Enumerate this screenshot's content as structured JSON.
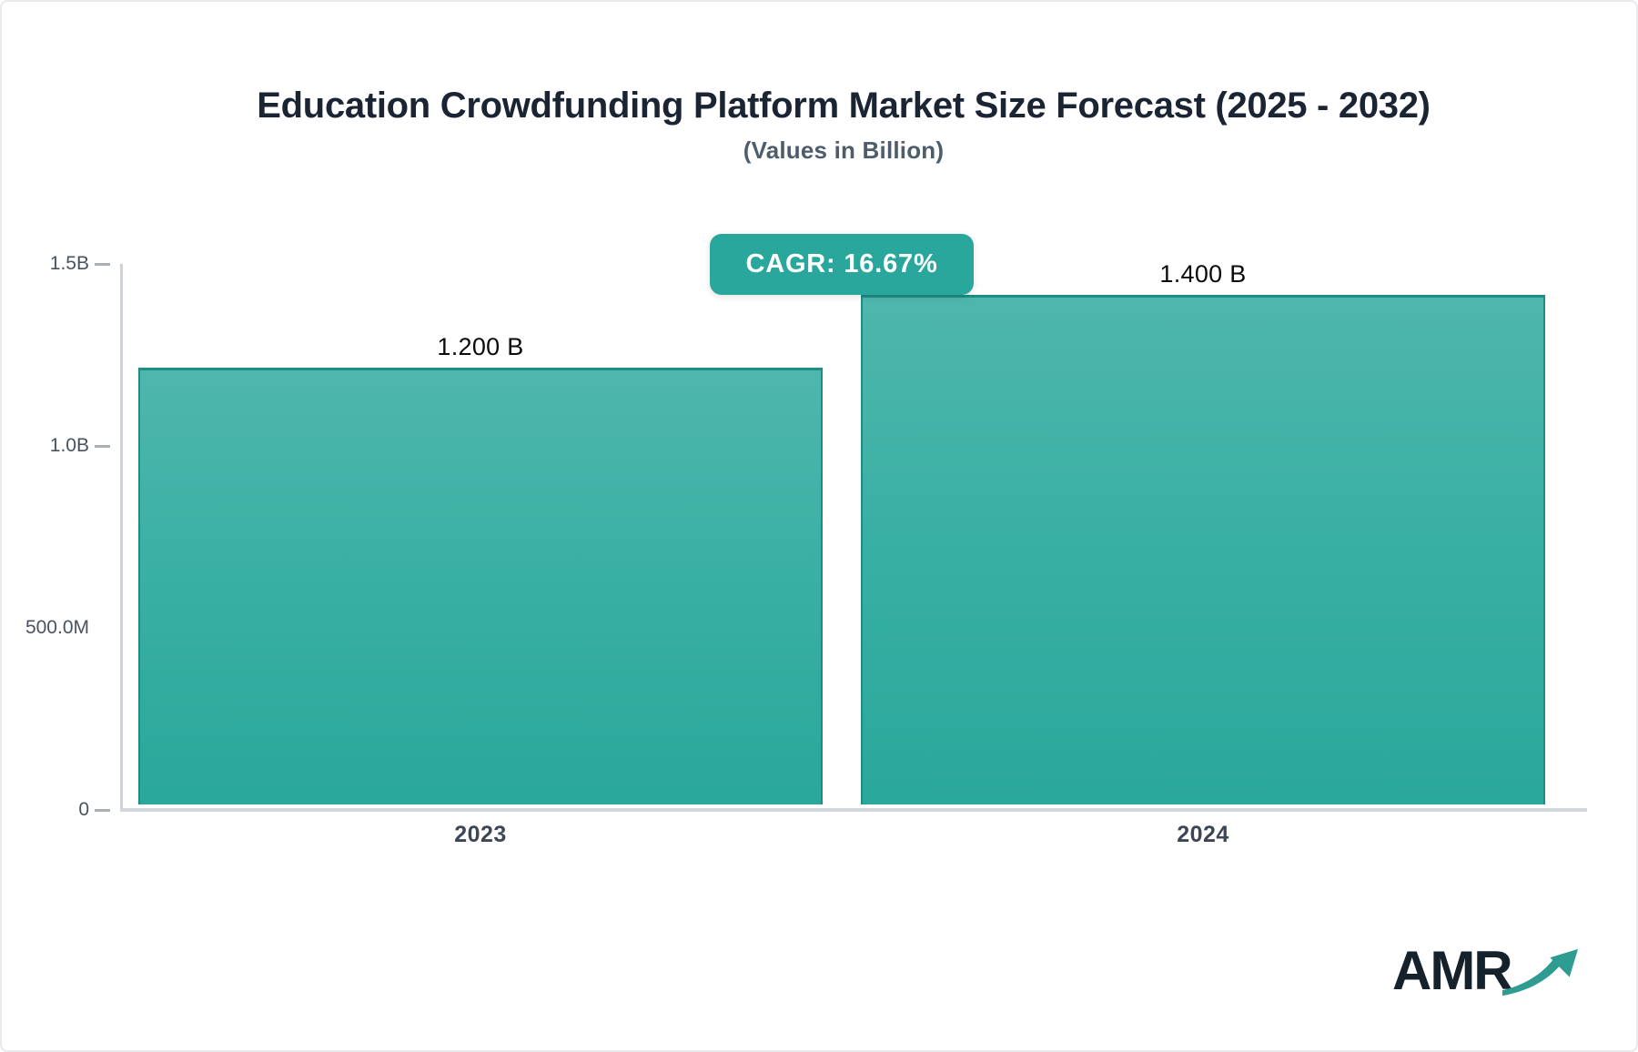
{
  "header": {
    "title": "Education Crowdfunding Platform Market Size Forecast (2025 - 2032)",
    "subtitle": "(Values in Billion)"
  },
  "badge": {
    "label": "CAGR: 16.67%"
  },
  "chart_data": {
    "type": "bar",
    "title": "Education Crowdfunding Platform Market Size Forecast (2025 - 2032)",
    "subtitle": "(Values in Billion)",
    "cagr_percent": 16.67,
    "categories": [
      "2023",
      "2024"
    ],
    "values": [
      1.2,
      1.4
    ],
    "value_labels": [
      "1.200 B",
      "1.400 B"
    ],
    "xlabel": "",
    "ylabel": "",
    "ylim": [
      0,
      1.5
    ],
    "ytick_labels": [
      "1.5B",
      "1.0B",
      "500.0M",
      "0"
    ],
    "grid": false,
    "legend": false
  },
  "logo": {
    "text": "AMR",
    "arrow_icon": "growth-arrow"
  },
  "colors": {
    "accent_teal": "#2aa79c",
    "bar_gradient_top": "#4fb6ac",
    "bar_gradient_bottom": "#2aa89b",
    "bar_border": "#1f8d83",
    "title_text": "#1b2433",
    "subtitle_text": "#4e5c6b",
    "axis_text": "#49525f",
    "axis_line": "#d3d6dc",
    "logo_text": "#16222b",
    "logo_arrow": "#2e9c91"
  }
}
